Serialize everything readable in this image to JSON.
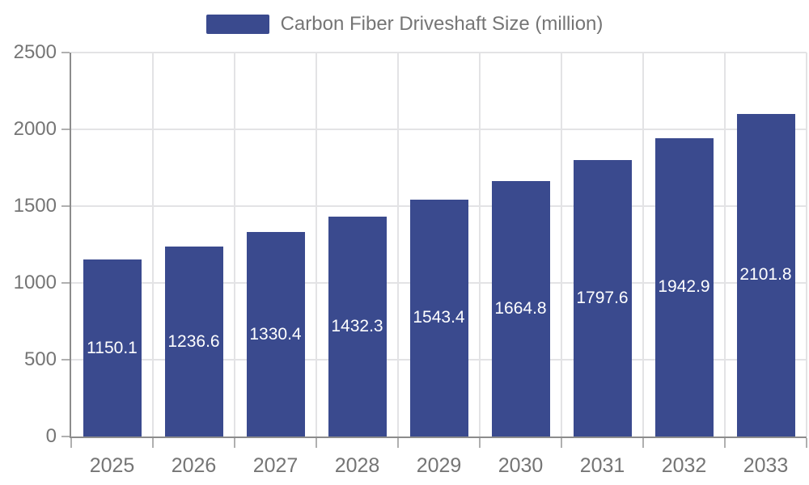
{
  "chart_data": {
    "type": "bar",
    "title": "Carbon Fiber Driveshaft Size (million)",
    "categories": [
      "2025",
      "2026",
      "2027",
      "2028",
      "2029",
      "2030",
      "2031",
      "2032",
      "2033"
    ],
    "values": [
      1150.1,
      1236.6,
      1330.4,
      1432.3,
      1543.4,
      1664.8,
      1797.6,
      1942.9,
      2101.8
    ],
    "series": [
      {
        "name": "Carbon Fiber Driveshaft Size (million)",
        "values": [
          1150.1,
          1236.6,
          1330.4,
          1432.3,
          1543.4,
          1664.8,
          1797.6,
          1942.9,
          2101.8
        ]
      }
    ],
    "xlabel": "",
    "ylabel": "",
    "ylim": [
      0,
      2500
    ],
    "yticks": [
      0,
      500,
      1000,
      1500,
      2000,
      2500
    ],
    "grid": true,
    "legend_position": "top-center",
    "value_label_position": "inside-center",
    "colors": {
      "bar": "#3A4A8E",
      "value_label_text": "#FFFFFF",
      "axis_line": "#8C8C8C",
      "tick_mark": "#B0B0B0",
      "gridline": "#E3E3E5",
      "tick_label_text": "#757575",
      "legend_text": "#757575",
      "background": "#FFFFFF"
    }
  }
}
